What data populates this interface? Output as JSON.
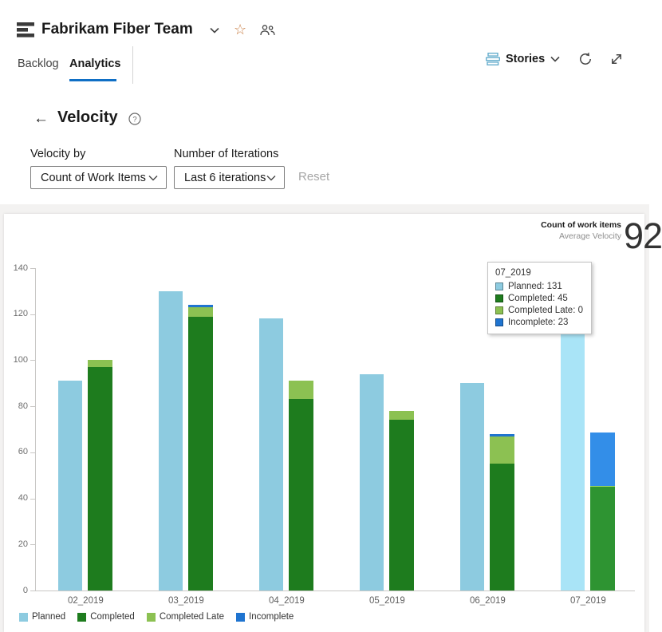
{
  "header": {
    "team_name": "Fabrikam Fiber Team",
    "icons": {
      "team": "backlog-icon",
      "expand_team": "chevron-down-icon",
      "favorite": "star-icon",
      "members": "people-icon"
    },
    "favorite_star_color": "#c97f46"
  },
  "tabs": {
    "backlog": "Backlog",
    "analytics": "Analytics",
    "active": "Analytics",
    "active_underline_color": "#0f6fc5"
  },
  "toolbar": {
    "backlog_level_label": "Stories",
    "icons": {
      "level": "stories-backlog-icon",
      "level_chevron": "chevron-down-icon",
      "refresh": "refresh-icon",
      "fullscreen": "expand-icon"
    }
  },
  "page": {
    "back_icon": "back-arrow-icon",
    "title": "Velocity",
    "help_icon": "help-circle-icon",
    "filters": {
      "velocity_by": {
        "label": "Velocity by",
        "value": "Count of Work Items"
      },
      "iterations": {
        "label": "Number of Iterations",
        "value": "Last 6 iterations"
      }
    },
    "reset_label": "Reset"
  },
  "chart_data": {
    "type": "bar",
    "title": "Count of work items",
    "subtitle": "Average Velocity",
    "average_velocity": "92",
    "ylim": [
      0,
      140
    ],
    "ytick_step": 20,
    "grid": false,
    "legend_position": "bottom-left",
    "categories": [
      "02_2019",
      "03_2019",
      "04_2019",
      "05_2019",
      "06_2019",
      "07_2019"
    ],
    "series": [
      {
        "name": "Planned",
        "type": "separate-bar",
        "color": "#8DCBE0",
        "hover_color": "#A9E4F7",
        "values": [
          91,
          130,
          118,
          94,
          90,
          131
        ]
      },
      {
        "name": "Completed",
        "type": "stack",
        "color": "#1E7C1E",
        "hover_color": "#2E9432",
        "values": [
          97,
          119,
          83,
          74,
          55,
          45
        ]
      },
      {
        "name": "Completed Late",
        "type": "stack",
        "color": "#8CC152",
        "hover_color": "#9AD65E",
        "values": [
          3,
          4,
          8,
          4,
          12,
          0
        ]
      },
      {
        "name": "Incomplete",
        "type": "stack",
        "color": "#1F74D0",
        "hover_color": "#338EE8",
        "values": [
          0,
          1,
          0,
          0,
          1,
          23
        ]
      }
    ],
    "hovered_category": "07_2019",
    "tooltip": {
      "title": "07_2019",
      "rows": [
        {
          "series": "Planned",
          "text": "Planned: 131"
        },
        {
          "series": "Completed",
          "text": "Completed: 45"
        },
        {
          "series": "Completed Late",
          "text": "Completed Late: 0"
        },
        {
          "series": "Incomplete",
          "text": "Incomplete: 23"
        }
      ]
    }
  }
}
